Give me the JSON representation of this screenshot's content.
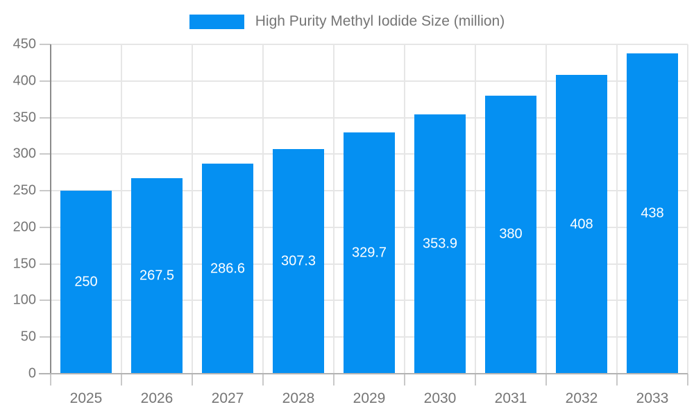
{
  "legend": {
    "label": "High Purity Methyl Iodide Size (million)"
  },
  "chart_data": {
    "type": "bar",
    "title": "",
    "categories": [
      "2025",
      "2026",
      "2027",
      "2028",
      "2029",
      "2030",
      "2031",
      "2032",
      "2033"
    ],
    "values": [
      250,
      267.5,
      286.6,
      307.3,
      329.7,
      353.9,
      380,
      408,
      438
    ],
    "value_labels": [
      "250",
      "267.5",
      "286.6",
      "307.3",
      "329.7",
      "353.9",
      "380",
      "408",
      "438"
    ],
    "series": [
      {
        "name": "High Purity Methyl Iodide Size (million)",
        "values": [
          250,
          267.5,
          286.6,
          307.3,
          329.7,
          353.9,
          380,
          408,
          438
        ]
      }
    ],
    "xlabel": "",
    "ylabel": "",
    "ylim": [
      0,
      450
    ],
    "ytick_step": 50,
    "ytick_labels": [
      "0",
      "50",
      "100",
      "150",
      "200",
      "250",
      "300",
      "350",
      "400",
      "450"
    ],
    "grid": true,
    "legend_position": "top-center",
    "value_label_position": "center-of-bar"
  },
  "colors": {
    "bar": "#0590f2",
    "axis_text": "#757575",
    "bar_value_text": "#ffffff",
    "gridline": "#e6e6e6",
    "y_axis_line": "#8c8c8c",
    "x_axis_line": "#b3b3b3",
    "tick": "#c9c9c9"
  }
}
